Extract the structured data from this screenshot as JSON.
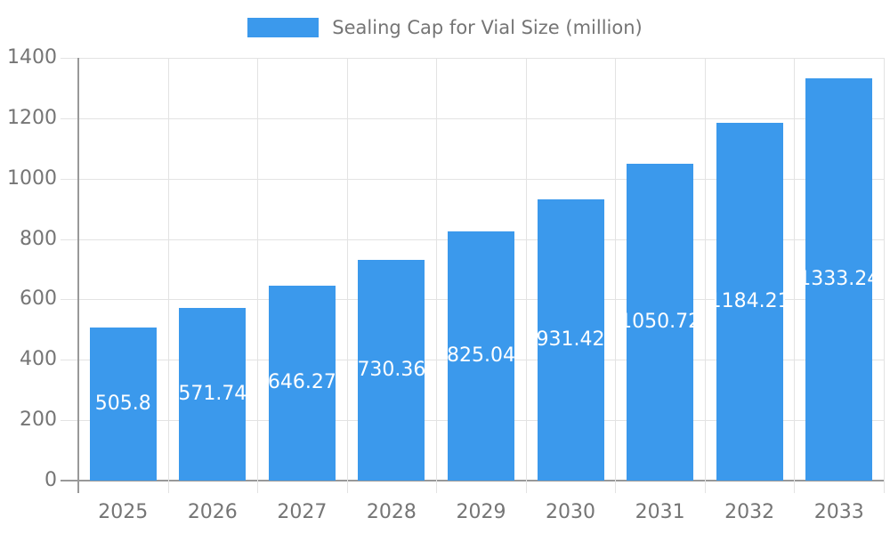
{
  "chart_data": {
    "type": "bar",
    "title": "Sealing Cap for Vial Size (million)",
    "legend_position": "top",
    "categories": [
      "2025",
      "2026",
      "2027",
      "2028",
      "2029",
      "2030",
      "2031",
      "2032",
      "2033"
    ],
    "series": [
      {
        "name": "Sealing Cap for Vial Size (million)",
        "values": [
          505.8,
          571.74,
          646.27,
          730.36,
          825.04,
          931.42,
          1050.72,
          1184.21,
          1333.24
        ]
      }
    ],
    "value_labels": [
      "505.8",
      "571.74",
      "646.27",
      "730.36",
      "825.04",
      "931.42",
      "1050.72",
      "1184.21",
      "1333.24"
    ],
    "xlabel": "",
    "ylabel": "",
    "ylim": [
      0,
      1400
    ],
    "yticks": [
      0,
      200,
      400,
      600,
      800,
      1000,
      1200,
      1400
    ],
    "grid": true
  },
  "colors": {
    "bar": "#3B99EC",
    "bar_label_text": "#FFFFFF",
    "gridline": "#E3E3E3",
    "axis_line": "#999999",
    "tick_text": "#757575",
    "legend_text": "#757575",
    "background": "#FFFFFF"
  }
}
